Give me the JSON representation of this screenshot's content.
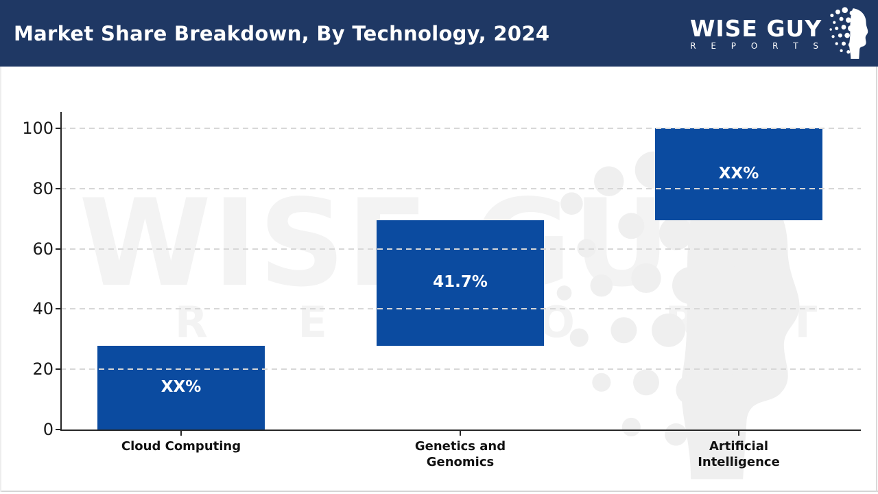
{
  "header": {
    "title": "Market Share Breakdown, By Technology, 2024",
    "logo": {
      "line1": "WISE GUY",
      "line2": "R E P O R T S"
    }
  },
  "watermark": {
    "line1": "WISE GUY",
    "line2": "R E P O R T S"
  },
  "colors": {
    "header_bg": "#1f3864",
    "bar": "#0b4ba0",
    "bar_label": "#ffffff",
    "gridline": "#d7d7d7",
    "axis": "#262626",
    "watermark": "#f3f3f3",
    "frame": "#d5d5d5"
  },
  "chart_data": {
    "type": "bar",
    "subtype": "segmented column / stacked waterfall",
    "title": "Market Share Breakdown, By Technology, 2024",
    "categories": [
      "Cloud Computing",
      "Genetics and\nGenomics",
      "Artificial\nIntelligence"
    ],
    "segments": [
      {
        "category": "Cloud Computing",
        "start": 0,
        "end": 27.8,
        "label": "XX%"
      },
      {
        "category": "Genetics and Genomics",
        "start": 27.8,
        "end": 69.5,
        "label": "41.7%"
      },
      {
        "category": "Artificial Intelligence",
        "start": 69.5,
        "end": 100,
        "label": "XX%"
      }
    ],
    "yticks": [
      0,
      20,
      40,
      60,
      80,
      100
    ],
    "ylim": [
      0,
      105
    ],
    "xlabel": "",
    "ylabel": "",
    "grid": "horizontal dashed, drawn above bars",
    "legend": "none",
    "bar_color": "#0b4ba0"
  }
}
